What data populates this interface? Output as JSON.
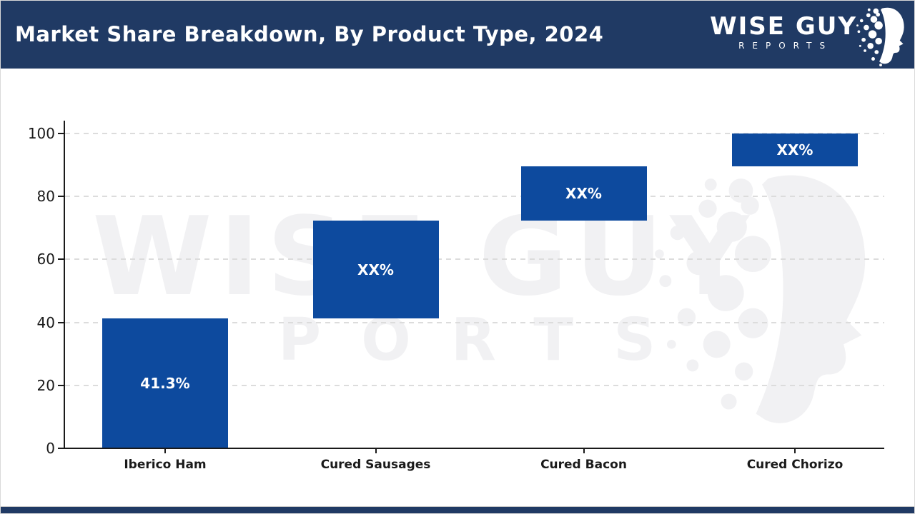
{
  "header": {
    "title": "Market Share Breakdown, By Product Type, 2024",
    "logo": {
      "line1": "WISE GUY",
      "line2": "REPORTS"
    }
  },
  "watermark": {
    "line1": "WISE GUY",
    "line2": "PORTS"
  },
  "colors": {
    "header_bg": "#203a64",
    "bar": "#0d4a9e",
    "grid": "#dcdcdc",
    "bar_label": "#ffffff",
    "watermark": "#f1f1f3"
  },
  "chart_data": {
    "type": "bar",
    "subtype": "waterfall",
    "title": "Market Share Breakdown, By Product Type, 2024",
    "categories": [
      "Iberico Ham",
      "Cured Sausages",
      "Cured Bacon",
      "Cured Chorizo"
    ],
    "bars": [
      {
        "category": "Iberico Ham",
        "label": "41.3%",
        "start": 0,
        "end": 41.3
      },
      {
        "category": "Cured Sausages",
        "label": "XX%",
        "start": 41.3,
        "end": 72.3
      },
      {
        "category": "Cured Bacon",
        "label": "XX%",
        "start": 72.3,
        "end": 89.6
      },
      {
        "category": "Cured Chorizo",
        "label": "XX%",
        "start": 89.6,
        "end": 100
      }
    ],
    "xlabel": "",
    "ylabel": "",
    "ylim": [
      0,
      104
    ],
    "yticks": [
      0,
      20,
      40,
      60,
      80,
      100
    ],
    "grid": "dashed-horizontal",
    "legend": "none"
  }
}
